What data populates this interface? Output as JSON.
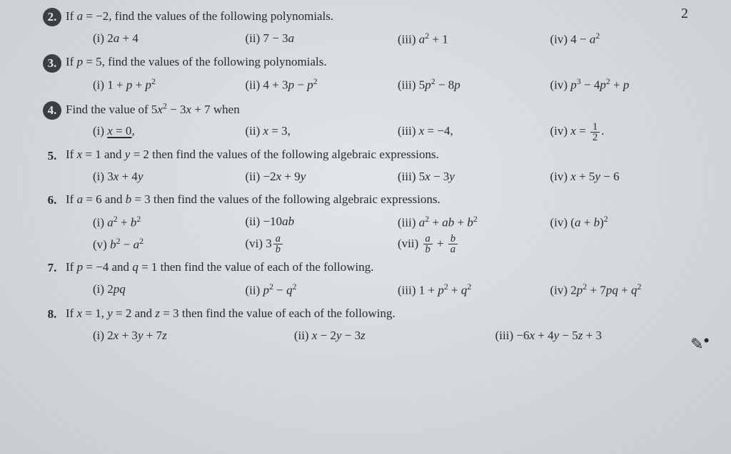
{
  "corner": "2",
  "questions": [
    {
      "num": "2.",
      "circled": true,
      "stem": "If <i>a</i> = −2, find the values of the following polynomials.",
      "opts": [
        {
          "k": "(i)",
          "t": "2<i>a</i> + 4"
        },
        {
          "k": "(ii)",
          "t": "7 − 3<i>a</i>"
        },
        {
          "k": "(iii)",
          "t": "<i>a</i><sup>2</sup> + 1"
        },
        {
          "k": "(iv)",
          "t": "4 − <i>a</i><sup>2</sup>"
        }
      ]
    },
    {
      "num": "3.",
      "circled": true,
      "stem": "If <i>p</i> = 5, find the values of the following polynomials.",
      "opts": [
        {
          "k": "(i)",
          "t": "1 + <i>p</i> + <i>p</i><sup>2</sup>"
        },
        {
          "k": "(ii)",
          "t": "4 + 3<i>p</i> − <i>p</i><sup>2</sup>"
        },
        {
          "k": "(iii)",
          "t": "5<i>p</i><sup>2</sup> − 8<i>p</i>"
        },
        {
          "k": "(iv)",
          "t": "<i>p</i><sup>3</sup> − 4<i>p</i><sup>2</sup> + <i>p</i>"
        }
      ]
    },
    {
      "num": "4.",
      "circled": true,
      "stem": "Find the value of 5<i>x</i><sup>2</sup> − 3<i>x</i> + 7 when",
      "opts": [
        {
          "k": "(i)",
          "t": "<span class='underline'><i>x</i> = 0</span>,"
        },
        {
          "k": "(ii)",
          "t": "<i>x</i> = 3,"
        },
        {
          "k": "(iii)",
          "t": "<i>x</i> = −4,"
        },
        {
          "k": "(iv)",
          "t": "<i>x</i> = <span class='frac'><span class='n'>1</span><span class='d'>2</span></span>."
        }
      ]
    },
    {
      "num": "5.",
      "circled": false,
      "stem": "If <i>x</i> = 1 and <i>y</i> = 2 then find the values of the following algebraic expressions.",
      "opts": [
        {
          "k": "(i)",
          "t": "3<i>x</i> + 4<i>y</i>"
        },
        {
          "k": "(ii)",
          "t": "−2<i>x</i> + 9<i>y</i>"
        },
        {
          "k": "(iii)",
          "t": "5<i>x</i> − 3<i>y</i>"
        },
        {
          "k": "(iv)",
          "t": "<i>x</i> + 5<i>y</i> − 6"
        }
      ]
    },
    {
      "num": "6.",
      "circled": false,
      "stem": "If <i>a</i> = 6 and <i>b</i> = 3 then find the values of the following algebraic expressions.",
      "opts": [
        {
          "k": "(i)",
          "t": "<i>a</i><sup>2</sup> + <i>b</i><sup>2</sup>"
        },
        {
          "k": "(ii)",
          "t": "−10<i>ab</i>"
        },
        {
          "k": "(iii)",
          "t": "<i>a</i><sup>2</sup> + <i>ab</i> + <i>b</i><sup>2</sup>"
        },
        {
          "k": "(iv)",
          "t": "(<i>a</i> + <i>b</i>)<sup>2</sup>"
        },
        {
          "k": "(v)",
          "t": "<i>b</i><sup>2</sup> − <i>a</i><sup>2</sup>"
        },
        {
          "k": "(vi)",
          "t": "3<span class='frac'><span class='n'><i>a</i></span><span class='d'><i>b</i></span></span>"
        },
        {
          "k": "(vii)",
          "t": "<span class='frac'><span class='n'><i>a</i></span><span class='d'><i>b</i></span></span> + <span class='frac'><span class='n'><i>b</i></span><span class='d'><i>a</i></span></span>"
        }
      ]
    },
    {
      "num": "7.",
      "circled": false,
      "stem": "If <i>p</i> = −4 and <i>q</i> = 1 then find the value of each of the following.",
      "opts": [
        {
          "k": "(i)",
          "t": "2<i>pq</i>"
        },
        {
          "k": "(ii)",
          "t": "<i>p</i><sup>2</sup> − <i>q</i><sup>2</sup>"
        },
        {
          "k": "(iii)",
          "t": "1 + <i>p</i><sup>2</sup> + <i>q</i><sup>2</sup>"
        },
        {
          "k": "(iv)",
          "t": "2<i>p</i><sup>2</sup> + 7<i>pq</i> + <i>q</i><sup>2</sup>"
        }
      ]
    },
    {
      "num": "8.",
      "circled": false,
      "stem": "If <i>x</i> = 1, <i>y</i> = 2 and <i>z</i> = 3 then find the value of each of the following.",
      "opts": [
        {
          "k": "(i)",
          "t": "2<i>x</i> + 3<i>y</i> + 7<i>z</i>",
          "cls": "opt3"
        },
        {
          "k": "(ii)",
          "t": "<i>x</i> − 2<i>y</i> − 3<i>z</i>",
          "cls": "opt3"
        },
        {
          "k": "(iii)",
          "t": "−6<i>x</i> + 4<i>y</i> − 5<i>z</i> + 3",
          "cls": "opt3"
        }
      ]
    }
  ],
  "bottom_icon": "✎"
}
